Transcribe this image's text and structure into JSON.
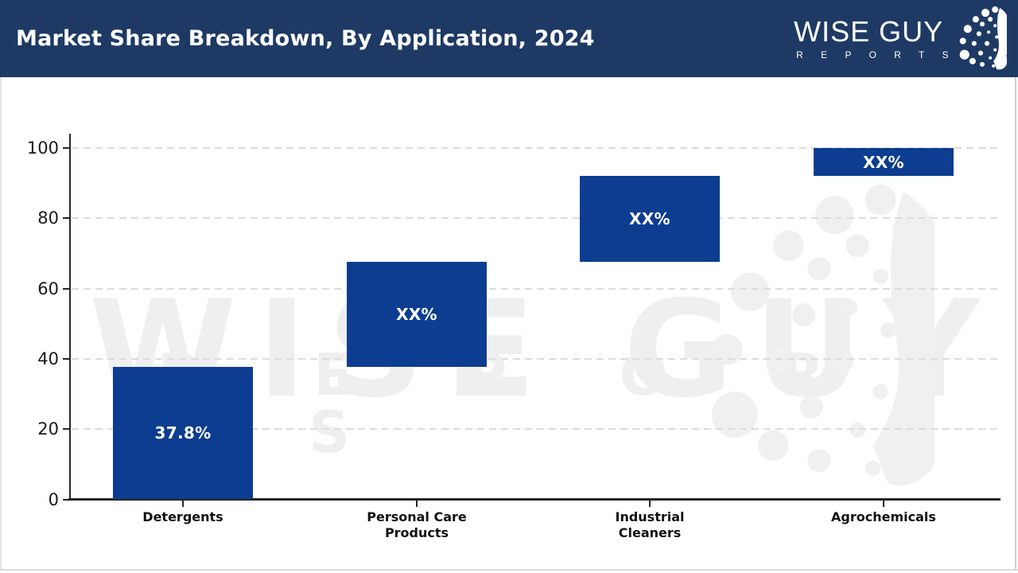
{
  "header": {
    "title": "Market Share Breakdown, By Application, 2024",
    "bg_color": "#1e3a64",
    "logo": {
      "line1": "WISE GUY",
      "line2": "R E P O R T S"
    }
  },
  "watermark": {
    "line1": "WISE GUY",
    "line2": "R E P O R T S"
  },
  "chart_data": {
    "type": "bar",
    "subtype": "waterfall",
    "title": "Market Share Breakdown, By Application, 2024",
    "categories": [
      {
        "name": "Detergents",
        "lines": [
          "Detergents"
        ]
      },
      {
        "name": "Personal Care Products",
        "lines": [
          "Personal Care",
          "Products"
        ]
      },
      {
        "name": "Industrial Cleaners",
        "lines": [
          "Industrial",
          "Cleaners"
        ]
      },
      {
        "name": "Agrochemicals",
        "lines": [
          "Agrochemicals"
        ]
      }
    ],
    "segments": [
      {
        "category": "Detergents",
        "start": 0,
        "end": 37.8,
        "label": "37.8%"
      },
      {
        "category": "Personal Care Products",
        "start": 37.8,
        "end": 67.5,
        "label": "XX%"
      },
      {
        "category": "Industrial Cleaners",
        "start": 67.5,
        "end": 92,
        "label": "XX%"
      },
      {
        "category": "Agrochemicals",
        "start": 92,
        "end": 100,
        "label": "XX%"
      }
    ],
    "yticks": [
      0,
      20,
      40,
      60,
      80,
      100
    ],
    "ylim": [
      0,
      100
    ],
    "bar_color": "#0d3d90",
    "grid": true,
    "grid_style": "dashed",
    "legend": "none",
    "xlabel": "",
    "ylabel": ""
  }
}
